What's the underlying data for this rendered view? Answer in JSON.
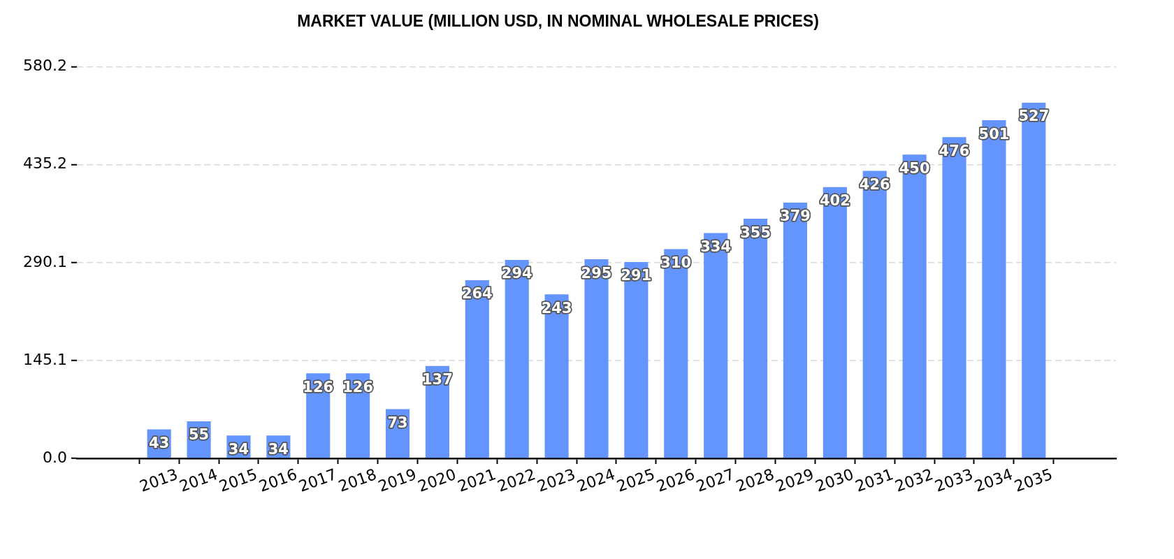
{
  "chart_data": {
    "type": "bar",
    "title": "MARKET VALUE (MILLION USD, IN NOMINAL WHOLESALE PRICES)",
    "categories": [
      "2013",
      "2014",
      "2015",
      "2016",
      "2017",
      "2018",
      "2019",
      "2020",
      "2021",
      "2022",
      "2023",
      "2024",
      "2025",
      "2026",
      "2027",
      "2028",
      "2029",
      "2030",
      "2031",
      "2032",
      "2033",
      "2034",
      "2035"
    ],
    "values": [
      43,
      55,
      34,
      34,
      126,
      126,
      73,
      137,
      264,
      294,
      243,
      295,
      291,
      310,
      334,
      355,
      379,
      402,
      426,
      450,
      476,
      501,
      527
    ],
    "color": "#6495fe",
    "ylim": [
      0,
      580.2
    ],
    "yticks": [
      {
        "value": 0,
        "label": "0.0"
      },
      145.1,
      290.1,
      435.2,
      580.2
    ],
    "grid": "y",
    "data_labels": true
  }
}
